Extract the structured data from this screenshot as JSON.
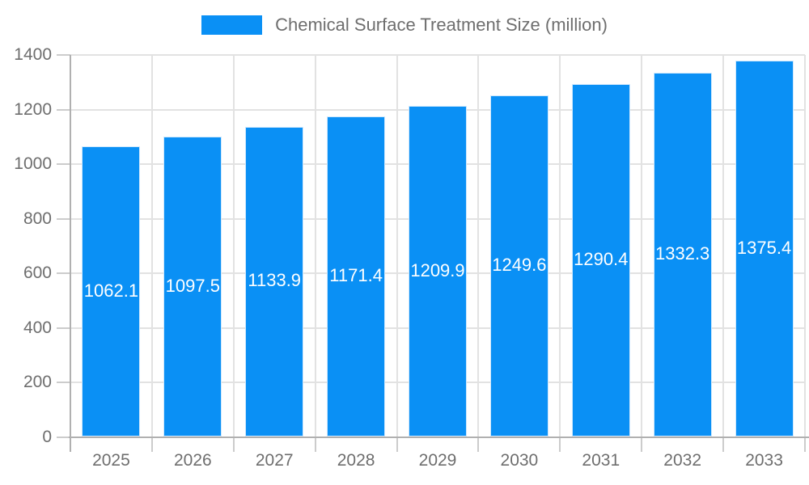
{
  "chart_data": {
    "type": "bar",
    "title": "Chemical Surface Treatment Size (million)",
    "legend_position": "top",
    "categories": [
      "2025",
      "2026",
      "2027",
      "2028",
      "2029",
      "2030",
      "2031",
      "2032",
      "2033"
    ],
    "series": [
      {
        "name": "Chemical Surface Treatment Size (million)",
        "values": [
          1062.1,
          1097.5,
          1133.9,
          1171.4,
          1209.9,
          1249.6,
          1290.4,
          1332.3,
          1375.4
        ]
      }
    ],
    "value_labels": [
      "1062.1",
      "1097.5",
      "1133.9",
      "1171.4",
      "1209.9",
      "1249.6",
      "1290.4",
      "1332.3",
      "1375.4"
    ],
    "xlabel": "",
    "ylabel": "",
    "ylim": [
      0,
      1400
    ],
    "yticks": [
      0,
      200,
      400,
      600,
      800,
      1000,
      1200,
      1400
    ],
    "grid": true,
    "colors": {
      "bar_fill": "#0a90f5",
      "bar_border": "#cfe8fd",
      "grid_line": "#e2e2e2",
      "axis_line": "#b0b0b0",
      "tick_mark": "#cccccc",
      "axis_text": "#6e6e6e",
      "legend_text": "#6e6e6e",
      "value_text": "#ffffff",
      "background": "#ffffff"
    }
  }
}
